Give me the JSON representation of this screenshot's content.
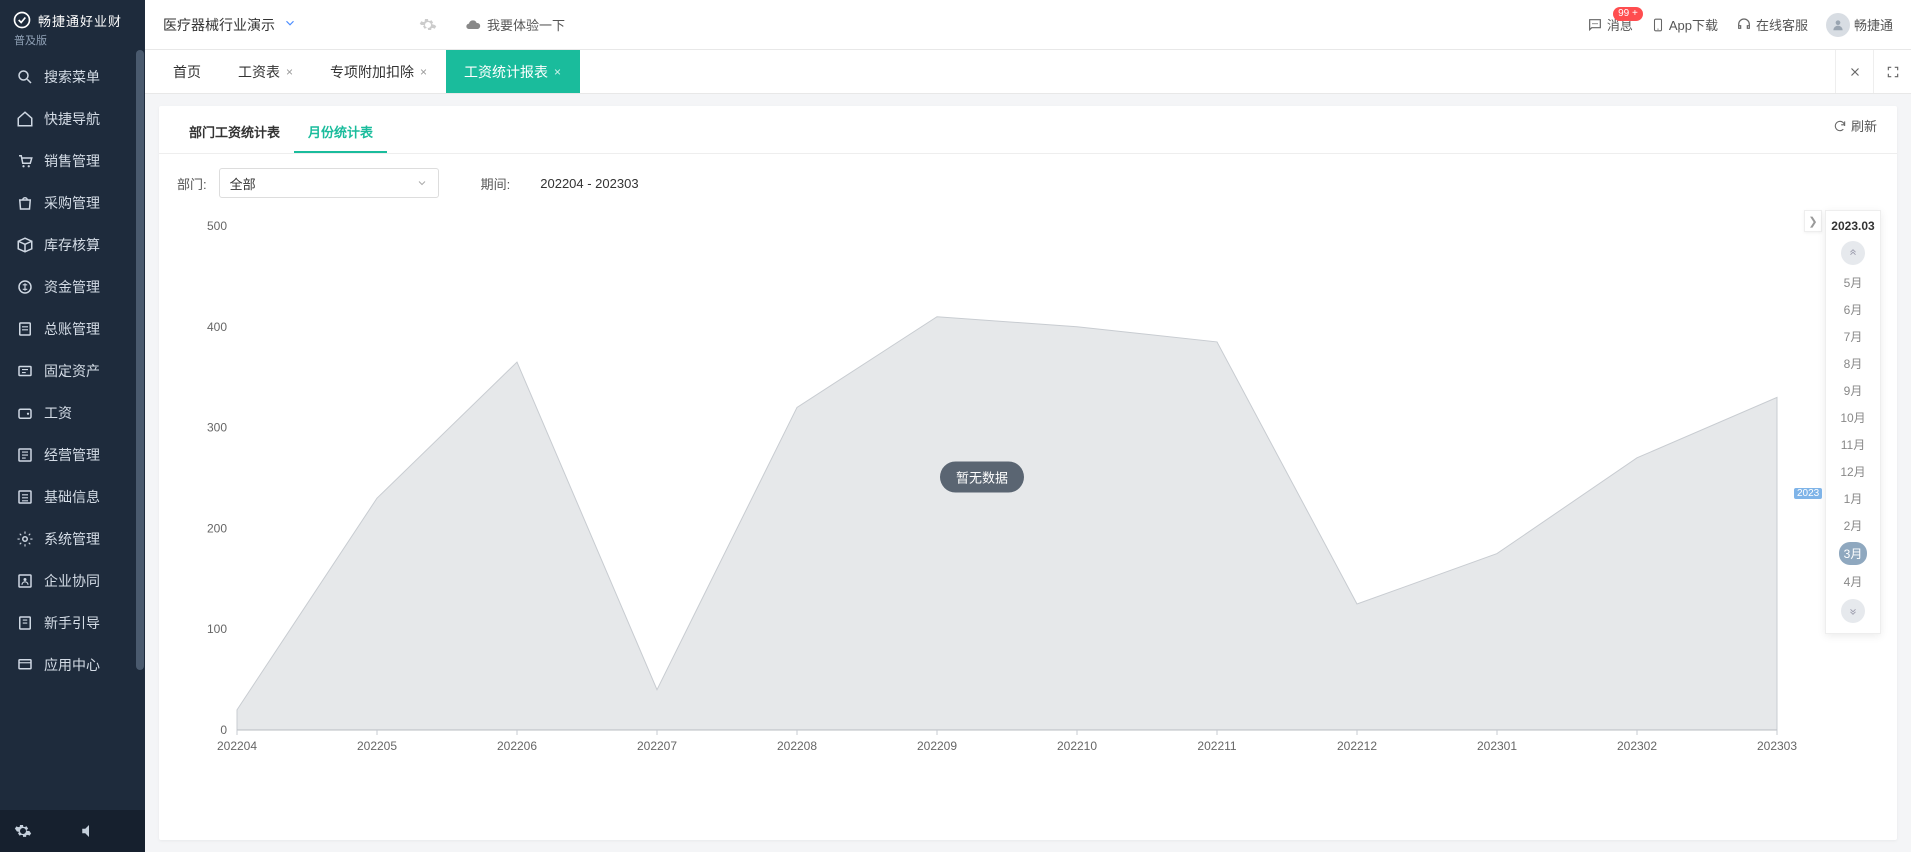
{
  "sidebar": {
    "logo_text": "畅捷通好业财",
    "sub_text": "普及版",
    "items": [
      {
        "icon": "search",
        "label": "搜索菜单"
      },
      {
        "icon": "home",
        "label": "快捷导航"
      },
      {
        "icon": "cart",
        "label": "销售管理"
      },
      {
        "icon": "bag",
        "label": "采购管理"
      },
      {
        "icon": "box",
        "label": "库存核算"
      },
      {
        "icon": "money",
        "label": "资金管理"
      },
      {
        "icon": "ledger",
        "label": "总账管理"
      },
      {
        "icon": "asset",
        "label": "固定资产"
      },
      {
        "icon": "wallet",
        "label": "工资"
      },
      {
        "icon": "manage",
        "label": "经营管理"
      },
      {
        "icon": "info",
        "label": "基础信息"
      },
      {
        "icon": "system",
        "label": "系统管理"
      },
      {
        "icon": "team",
        "label": "企业协同"
      },
      {
        "icon": "guide",
        "label": "新手引导"
      },
      {
        "icon": "apps",
        "label": "应用中心"
      }
    ]
  },
  "topbar": {
    "project_name": "医疗器械行业演示",
    "cloud_text": "我要体验一下",
    "msg_label": "消息",
    "msg_badge": "99 +",
    "app_label": "App下载",
    "service_label": "在线客服",
    "user_name": "畅捷通"
  },
  "tabs": [
    {
      "label": "首页",
      "closable": false,
      "active": false
    },
    {
      "label": "工资表",
      "closable": true,
      "active": false
    },
    {
      "label": "专项附加扣除",
      "closable": true,
      "active": false
    },
    {
      "label": "工资统计报表",
      "closable": true,
      "active": true
    }
  ],
  "sub_tabs": [
    {
      "label": "部门工资统计表",
      "active": false
    },
    {
      "label": "月份统计表",
      "active": true
    }
  ],
  "refresh_label": "刷新",
  "filters": {
    "dept_label": "部门:",
    "dept_value": "全部",
    "period_label": "期间:",
    "period_value": "202204 - 202303"
  },
  "chart": {
    "type": "area",
    "categories": [
      "202204",
      "202205",
      "202206",
      "202207",
      "202208",
      "202209",
      "202210",
      "202211",
      "202212",
      "202301",
      "202302",
      "202303"
    ],
    "values": [
      20,
      230,
      365,
      40,
      320,
      410,
      400,
      385,
      125,
      175,
      270,
      330
    ],
    "ylim": [
      0,
      500
    ],
    "ytick_step": 100,
    "fill_color": "#e6e8ea",
    "fill_opacity": 1,
    "stroke_color": "#c8ccd1",
    "axis_color": "#c7cbd1",
    "baseline_color": "#b8bcc2",
    "tick_label_color": "#666666",
    "tick_fontsize": 12,
    "overlay_text": "暂无数据",
    "overlay_bg": "#5a6572",
    "background_color": "#ffffff"
  },
  "date_nav": {
    "current": "2023.03",
    "months": [
      "5月",
      "6月",
      "7月",
      "8月",
      "9月",
      "10月",
      "11月",
      "12月",
      "1月",
      "2月",
      "3月",
      "4月"
    ],
    "year_break_index": 8,
    "year_badge": "2023",
    "selected_index": 10
  }
}
